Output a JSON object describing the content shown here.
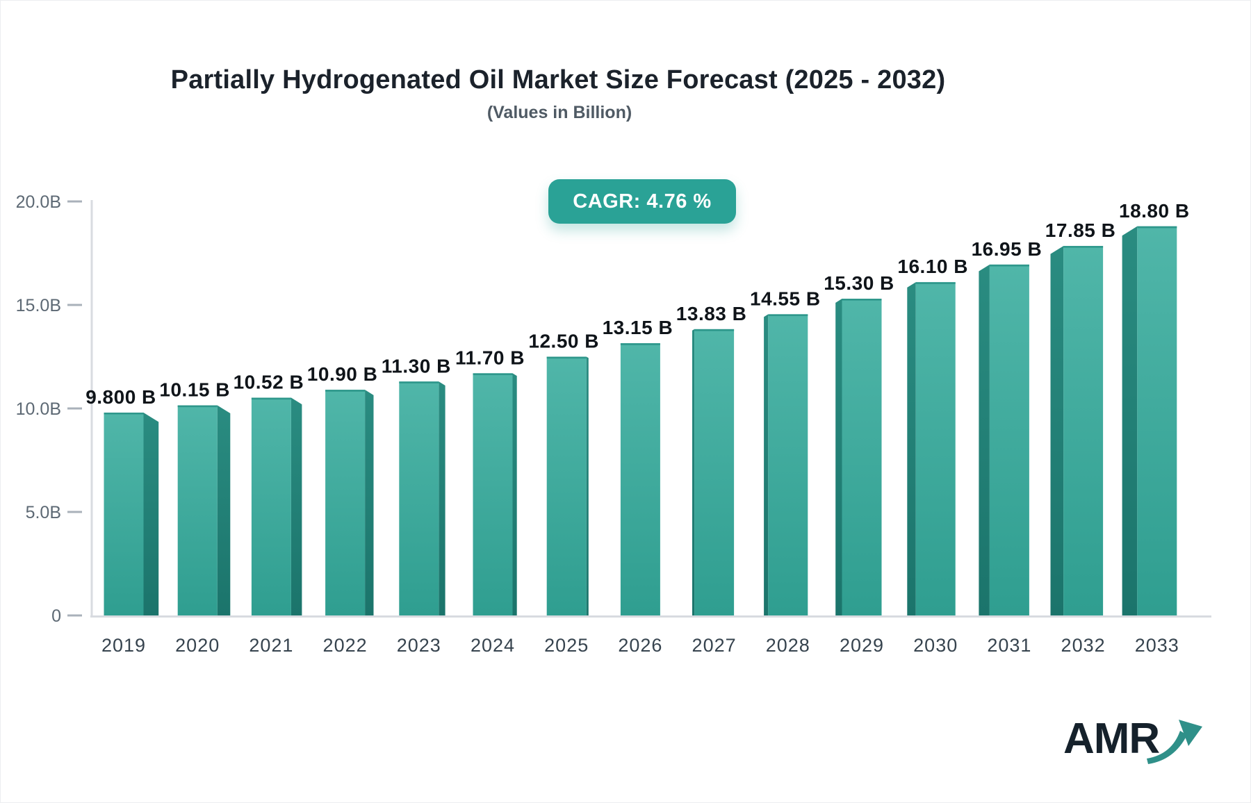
{
  "title": "Partially Hydrogenated Oil Market Size Forecast (2025 - 2032)",
  "subtitle": "(Values in Billion)",
  "cagr": "CAGR: 4.76 %",
  "logo": {
    "text": "AMR"
  },
  "colors": {
    "accent": "#2aa296",
    "bar_face_top": "#50b6a9",
    "bar_face_bottom": "#2f9e90",
    "bar_side_top": "#2a8c81",
    "bar_side_bottom": "#1b746b",
    "bar_top_edge": "#2e978b",
    "axis_line": "#d8dbe0",
    "tick_dash": "#a9b1ba",
    "y_label": "#5d6974",
    "x_label": "#36434e",
    "value_label": "#0f1419",
    "logo_text": "#15212b",
    "logo_arrow": "#2f9089"
  },
  "chart_data": {
    "type": "bar",
    "title": "Partially Hydrogenated Oil Market Size Forecast (2025 - 2032)",
    "subtitle": "(Values in Billion)",
    "xlabel": "",
    "ylabel": "",
    "ylim": [
      0,
      20
    ],
    "grid": false,
    "legend": "none",
    "categories": [
      "2019",
      "2020",
      "2021",
      "2022",
      "2023",
      "2024",
      "2025",
      "2026",
      "2027",
      "2028",
      "2029",
      "2030",
      "2031",
      "2032",
      "2033"
    ],
    "values": [
      9.8,
      10.15,
      10.52,
      10.9,
      11.3,
      11.7,
      12.5,
      13.15,
      13.83,
      14.55,
      15.3,
      16.1,
      16.95,
      17.85,
      18.8
    ],
    "value_labels": [
      "9.800 B",
      "10.15 B",
      "10.52 B",
      "10.90 B",
      "11.30 B",
      "11.70 B",
      "12.50 B",
      "13.15 B",
      "13.83 B",
      "14.55 B",
      "15.30 B",
      "16.10 B",
      "16.95 B",
      "17.85 B",
      "18.80 B"
    ],
    "y_ticks": [
      {
        "value": 0,
        "label": "0"
      },
      {
        "value": 5,
        "label": "5.0B"
      },
      {
        "value": 10,
        "label": "10.0B"
      },
      {
        "value": 15,
        "label": "15.0B"
      },
      {
        "value": 20,
        "label": "20.0B"
      }
    ],
    "annotation": "CAGR: 4.76 %"
  }
}
